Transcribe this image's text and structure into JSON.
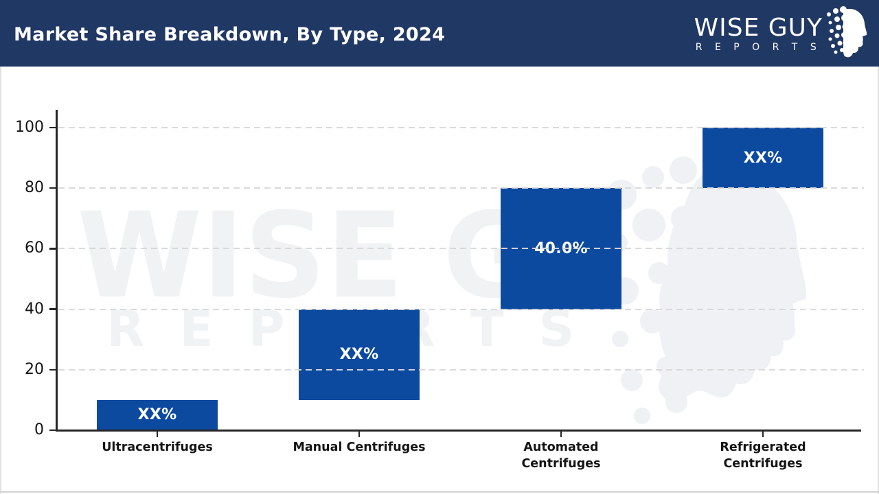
{
  "header": {
    "title": "Market Share Breakdown, By Type, 2024",
    "bg_color": "#203864",
    "logo": {
      "line1": "WISE GUY",
      "line2": "R E P O R T S"
    }
  },
  "watermark": {
    "line1": "WISE GU",
    "line2": "R E P O R T S"
  },
  "chart_data": {
    "type": "bar",
    "subtype": "floating-waterfall",
    "title": "Market Share Breakdown, By Type, 2024",
    "categories": [
      "Ultracentrifuges",
      "Manual Centrifuges",
      "Automated Centrifuges",
      "Refrigerated Centrifuges"
    ],
    "category_display": [
      "Ultracentrifuges",
      "Manual Centrifuges",
      "Automated\nCentrifuges",
      "Refrigerated\nCentrifuges"
    ],
    "segments": [
      {
        "category": "Ultracentrifuges",
        "start": 0,
        "end": 10,
        "label": "XX%"
      },
      {
        "category": "Manual Centrifuges",
        "start": 10,
        "end": 40,
        "label": "XX%"
      },
      {
        "category": "Automated Centrifuges",
        "start": 40,
        "end": 80,
        "label": "40.0%"
      },
      {
        "category": "Refrigerated Centrifuges",
        "start": 80,
        "end": 100,
        "label": "XX%"
      }
    ],
    "ylim": [
      0,
      100
    ],
    "yticks": [
      0,
      20,
      40,
      60,
      80,
      100
    ],
    "grid": "dashed-horizontal",
    "legend": "none",
    "bar_color": "#0c4aa0",
    "bar_label_color": "#ffffff",
    "grid_color": "#d8d8d8",
    "axis_color": "#262626"
  }
}
